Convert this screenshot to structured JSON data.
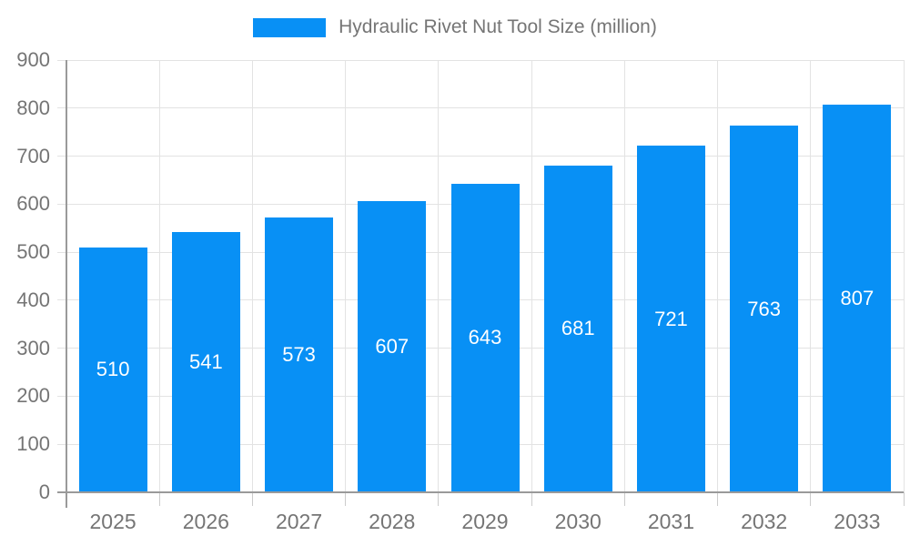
{
  "legend": {
    "label": "Hydraulic Rivet Nut Tool Size (million)",
    "swatch_color": "#0890f5"
  },
  "chart_data": {
    "type": "bar",
    "title": "Hydraulic Rivet Nut Tool Size (million)",
    "categories": [
      "2025",
      "2026",
      "2027",
      "2028",
      "2029",
      "2030",
      "2031",
      "2032",
      "2033"
    ],
    "values": [
      510,
      541,
      573,
      607,
      643,
      681,
      721,
      763,
      807
    ],
    "xlabel": "",
    "ylabel": "",
    "ylim": [
      0,
      900
    ],
    "ytick_step": 100,
    "ytick_labels": [
      "0",
      "100",
      "200",
      "300",
      "400",
      "500",
      "600",
      "700",
      "800",
      "900"
    ],
    "grid": true,
    "legend_position": "top-center",
    "bar_color": "#0890f5",
    "value_label_color": "#ffffff",
    "axis_label_color": "#757575",
    "grid_color": "#e3e3e3",
    "axis_line_color": "#9a9a9a"
  }
}
